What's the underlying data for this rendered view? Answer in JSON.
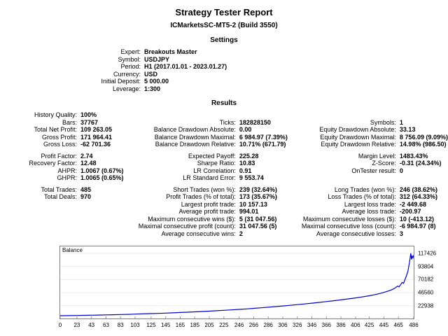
{
  "header": {
    "title": "Strategy Tester Report",
    "subtitle": "ICMarketsSC-MT5-2 (Build 3550)"
  },
  "sections": {
    "settings": "Settings",
    "results": "Results"
  },
  "settings_rows": [
    {
      "label": "Expert:",
      "value": "Breakouts Master"
    },
    {
      "label": "Symbol:",
      "value": "USDJPY"
    },
    {
      "label": "Period:",
      "value": "H1 (2017.01.01 - 2023.01.27)"
    },
    {
      "label": "Currency:",
      "value": "USD"
    },
    {
      "label": "Initial Deposit:",
      "value": "5 000.00"
    },
    {
      "label": "Leverage:",
      "value": "1:300"
    }
  ],
  "results_groups": [
    [
      [
        {
          "label": "History Quality:",
          "value": "100%"
        },
        {
          "label": "",
          "value": ""
        },
        {
          "label": "",
          "value": ""
        }
      ],
      [
        {
          "label": "Bars:",
          "value": "37767"
        },
        {
          "label": "Ticks:",
          "value": "182828150"
        },
        {
          "label": "Symbols:",
          "value": "1"
        }
      ],
      [
        {
          "label": "Total Net Profit:",
          "value": "109 263.05"
        },
        {
          "label": "Balance Drawdown Absolute:",
          "value": "0.00"
        },
        {
          "label": "Equity Drawdown Absolute:",
          "value": "33.13"
        }
      ],
      [
        {
          "label": "Gross Profit:",
          "value": "171 964.41"
        },
        {
          "label": "Balance Drawdown Maximal:",
          "value": "6 984.97 (7.39%)"
        },
        {
          "label": "Equity Drawdown Maximal:",
          "value": "8 756.09 (9.09%)"
        }
      ],
      [
        {
          "label": "Gross Loss:",
          "value": "-62 701.36"
        },
        {
          "label": "Balance Drawdown Relative:",
          "value": "10.71% (671.79)"
        },
        {
          "label": "Equity Drawdown Relative:",
          "value": "14.98% (986.50)"
        }
      ]
    ],
    [
      [
        {
          "label": "Profit Factor:",
          "value": "2.74"
        },
        {
          "label": "Expected Payoff:",
          "value": "225.28"
        },
        {
          "label": "Margin Level:",
          "value": "1483.43%"
        }
      ],
      [
        {
          "label": "Recovery Factor:",
          "value": "12.48"
        },
        {
          "label": "Sharpe Ratio:",
          "value": "10.83"
        },
        {
          "label": "Z-Score:",
          "value": "-0.31 (24.34%)"
        }
      ],
      [
        {
          "label": "AHPR:",
          "value": "1.0067 (0.67%)"
        },
        {
          "label": "LR Correlation:",
          "value": "0.91"
        },
        {
          "label": "OnTester result:",
          "value": "0"
        }
      ],
      [
        {
          "label": "GHPR:",
          "value": "1.0065 (0.65%)"
        },
        {
          "label": "LR Standard Error:",
          "value": "9 553.74"
        },
        {
          "label": "",
          "value": ""
        }
      ]
    ],
    [
      [
        {
          "label": "Total Trades:",
          "value": "485"
        },
        {
          "label": "Short Trades (won %):",
          "value": "239 (32.64%)"
        },
        {
          "label": "Long Trades (won %):",
          "value": "246 (38.62%)"
        }
      ],
      [
        {
          "label": "Total Deals:",
          "value": "970"
        },
        {
          "label": "Profit Trades (% of total):",
          "value": "173 (35.67%)"
        },
        {
          "label": "Loss Trades (% of total):",
          "value": "312 (64.33%)"
        }
      ],
      [
        {
          "label": "",
          "value": ""
        },
        {
          "label": "Largest profit trade:",
          "value": "10 157.13"
        },
        {
          "label": "Largest loss trade:",
          "value": "-2 449.68"
        }
      ],
      [
        {
          "label": "",
          "value": ""
        },
        {
          "label": "Average profit trade:",
          "value": "994.01"
        },
        {
          "label": "Average loss trade:",
          "value": "-200.97"
        }
      ],
      [
        {
          "label": "",
          "value": ""
        },
        {
          "label": "Maximum consecutive wins ($):",
          "value": "5 (31 047.56)"
        },
        {
          "label": "Maximum consecutive losses ($):",
          "value": "10 (-413.12)"
        }
      ],
      [
        {
          "label": "",
          "value": ""
        },
        {
          "label": "Maximal consecutive profit (count):",
          "value": "31 047.56 (5)"
        },
        {
          "label": "Maximal consecutive loss (count):",
          "value": "-6 984.97 (8)"
        }
      ],
      [
        {
          "label": "",
          "value": ""
        },
        {
          "label": "Average consecutive wins:",
          "value": "2"
        },
        {
          "label": "Average consecutive losses:",
          "value": "3"
        }
      ]
    ]
  ],
  "chart_data": {
    "type": "line",
    "title": "Balance",
    "line_color": "#0000c8",
    "grid": true,
    "legend_position": "top-left-inside",
    "xlim": [
      0,
      486
    ],
    "ylim": [
      0,
      130000
    ],
    "x_ticks": [
      0,
      23,
      43,
      63,
      83,
      103,
      125,
      145,
      165,
      185,
      205,
      225,
      246,
      266,
      286,
      306,
      326,
      346,
      366,
      386,
      406,
      425,
      445,
      465,
      486
    ],
    "y_ticks": [
      117426,
      93804,
      70182,
      46560,
      22938
    ],
    "series": [
      {
        "name": "Balance",
        "x": [
          0,
          12,
          23,
          33,
          43,
          53,
          63,
          73,
          83,
          93,
          103,
          113,
          125,
          135,
          145,
          155,
          165,
          175,
          185,
          195,
          205,
          215,
          225,
          235,
          246,
          256,
          266,
          276,
          286,
          296,
          306,
          316,
          326,
          336,
          346,
          356,
          366,
          376,
          386,
          396,
          406,
          415,
          425,
          432,
          440,
          447,
          452,
          457,
          461,
          464,
          466,
          468,
          470,
          472,
          474,
          476,
          478,
          479,
          480,
          481,
          482,
          483,
          484,
          485,
          486
        ],
        "y": [
          5000,
          5150,
          5400,
          5650,
          5950,
          6200,
          6500,
          6800,
          7150,
          7500,
          7900,
          8300,
          8800,
          9250,
          9750,
          10250,
          10800,
          11350,
          11950,
          12600,
          13300,
          14000,
          14750,
          15550,
          16400,
          17300,
          18250,
          19250,
          20300,
          21400,
          22550,
          23750,
          25000,
          26300,
          27650,
          29050,
          30500,
          32000,
          33600,
          35300,
          37100,
          38900,
          41000,
          42800,
          45200,
          47800,
          50000,
          52500,
          55500,
          58500,
          57200,
          61000,
          65000,
          63500,
          70000,
          77000,
          85000,
          92000,
          100000,
          108000,
          117426,
          106500,
          112500,
          109500,
          114263
        ]
      }
    ]
  }
}
